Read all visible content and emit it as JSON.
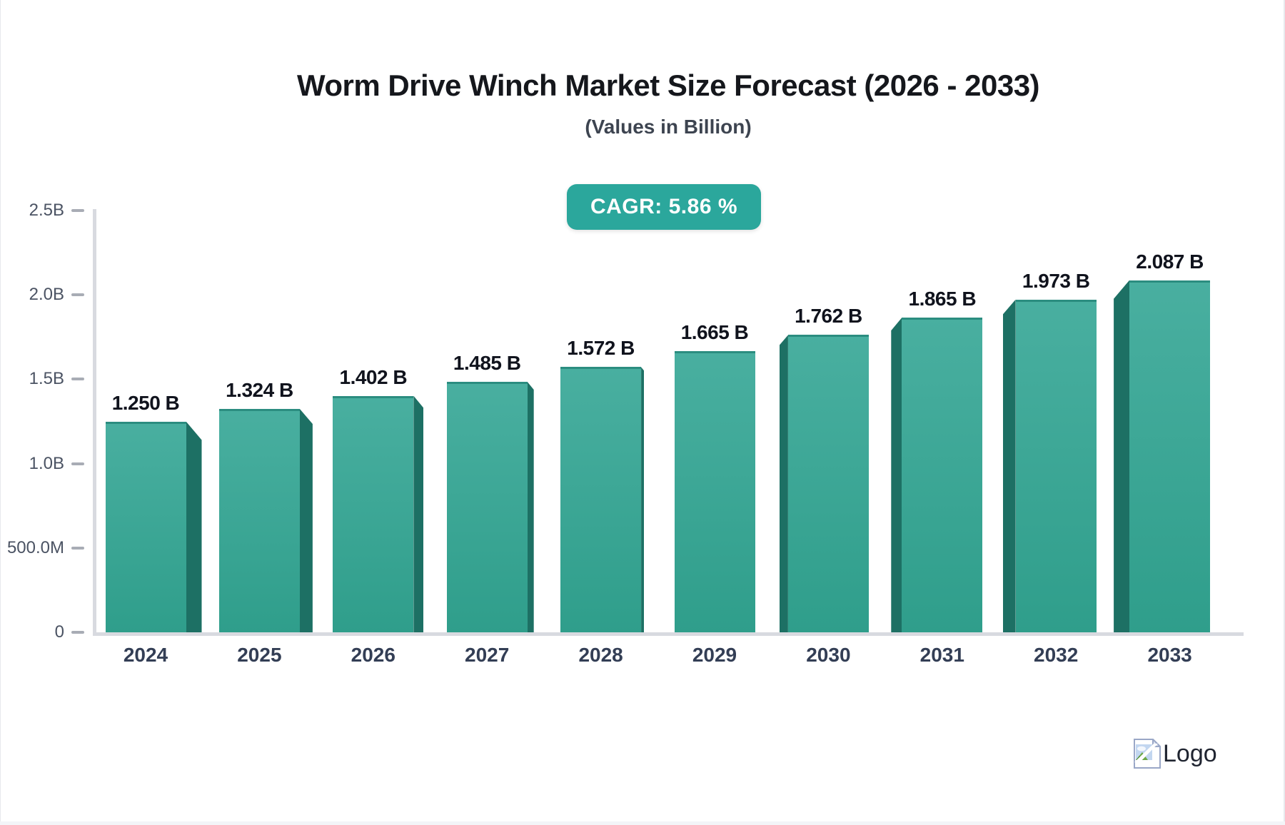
{
  "chart_data": {
    "type": "bar",
    "bar_style": "3d-perspective",
    "title": "Worm Drive Winch Market Size Forecast (2026 - 2033)",
    "subtitle": "(Values in Billion)",
    "cagr_badge": "CAGR: 5.86 %",
    "categories": [
      "2024",
      "2025",
      "2026",
      "2027",
      "2028",
      "2029",
      "2030",
      "2031",
      "2032",
      "2033"
    ],
    "values": [
      1.25,
      1.324,
      1.402,
      1.485,
      1.572,
      1.665,
      1.762,
      1.865,
      1.973,
      2.087
    ],
    "value_labels": [
      "1.250 B",
      "1.324 B",
      "1.402 B",
      "1.485 B",
      "1.572 B",
      "1.665 B",
      "1.762 B",
      "1.865 B",
      "1.973 B",
      "2.087 B"
    ],
    "unit": "Billion",
    "xlabel": "",
    "ylabel": "",
    "ylim": [
      0,
      2.5
    ],
    "grid": false,
    "legend": false,
    "y_axis": {
      "tick_labels": [
        "0",
        "500.0M",
        "1.0B",
        "1.5B",
        "2.0B",
        "2.5B"
      ],
      "tick_values": [
        0,
        0.5,
        1.0,
        1.5,
        2.0,
        2.5
      ]
    },
    "colors": {
      "bar_face_top": "#49AFA0",
      "bar_face_bottom": "#2F9E8B",
      "bar_side": "#1D7064",
      "bar_top_edge": "#2B8D80",
      "badge_bg": "#2BA79C",
      "badge_text": "#FFFFFF",
      "axis_line": "#D8DAE0",
      "tick_dash": "#A8ACB5",
      "y_label": "#4B5363",
      "x_label": "#333E55",
      "value_label": "#10131D",
      "title": "#15171C",
      "subtitle": "#3D4450",
      "logo_text": "#1F2430"
    }
  },
  "footer": {
    "logo_text": "Logo",
    "logo_icon": "broken-image-icon"
  }
}
